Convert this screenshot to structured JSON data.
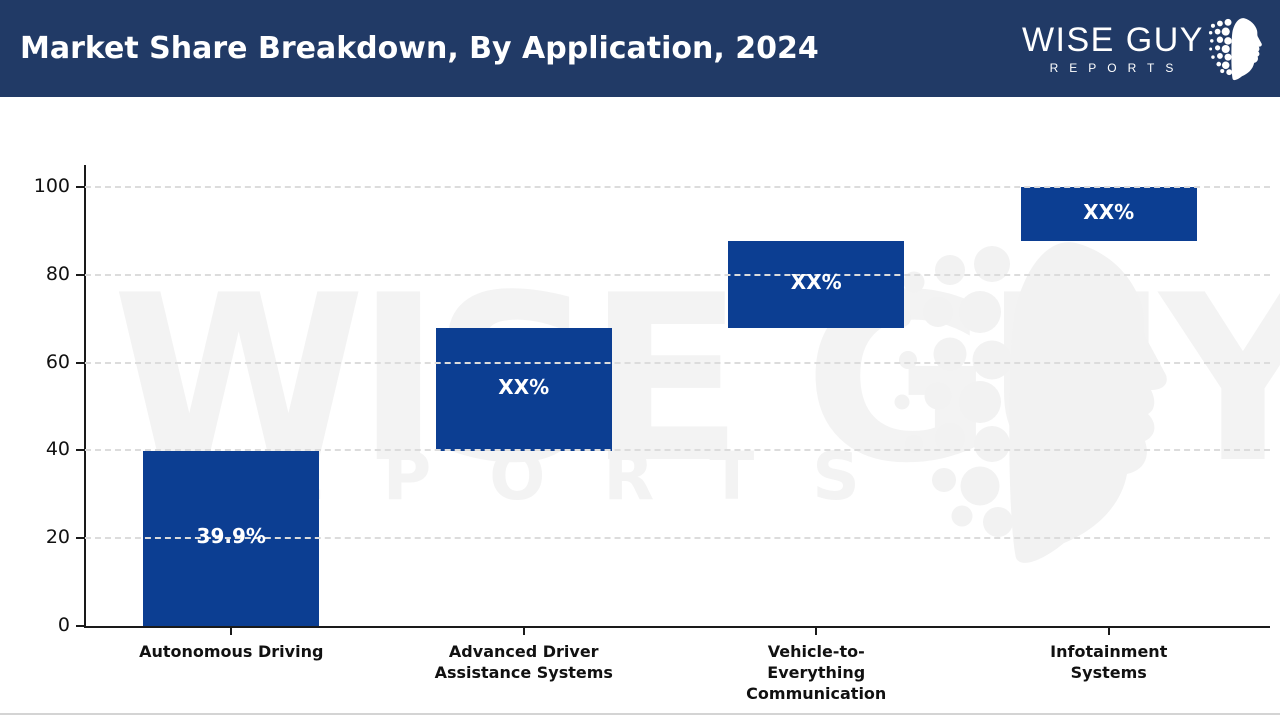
{
  "header": {
    "title": "Market Share Breakdown, By Application, 2024",
    "background": "#213a66"
  },
  "brand": {
    "name": "WISE GUY",
    "sub": "REPORTS"
  },
  "watermark": {
    "line1": "WISE GUY",
    "line2": "REPORTS"
  },
  "chart_data": {
    "type": "bar",
    "subtype": "floating-waterfall",
    "title": "Market Share Breakdown, By Application, 2024",
    "xlabel": "",
    "ylabel": "",
    "ylim": [
      0,
      100
    ],
    "yticks": [
      0,
      20,
      40,
      60,
      80,
      100
    ],
    "grid": "dashed-horizontal",
    "legend": "none",
    "bar_color": "#0c3e92",
    "bar_label_color": "#ffffff",
    "categories": [
      [
        "Autonomous Driving"
      ],
      [
        "Advanced Driver",
        "Assistance Systems"
      ],
      [
        "Vehicle-to-",
        "Everything",
        "Communication"
      ],
      [
        "Infotainment",
        "Systems"
      ]
    ],
    "segments": [
      {
        "category": "Autonomous Driving",
        "start": 0,
        "end": 39.9,
        "value": 39.9,
        "label": "39.9%"
      },
      {
        "category": "Advanced Driver Assistance Systems",
        "start": 39.9,
        "end": 67.9,
        "value": 28.0,
        "label": "XX%"
      },
      {
        "category": "Vehicle-to-Everything Communication",
        "start": 67.9,
        "end": 87.7,
        "value": 19.8,
        "label": "XX%"
      },
      {
        "category": "Infotainment Systems",
        "start": 87.7,
        "end": 100.0,
        "value": 12.3,
        "label": "XX%"
      }
    ]
  }
}
